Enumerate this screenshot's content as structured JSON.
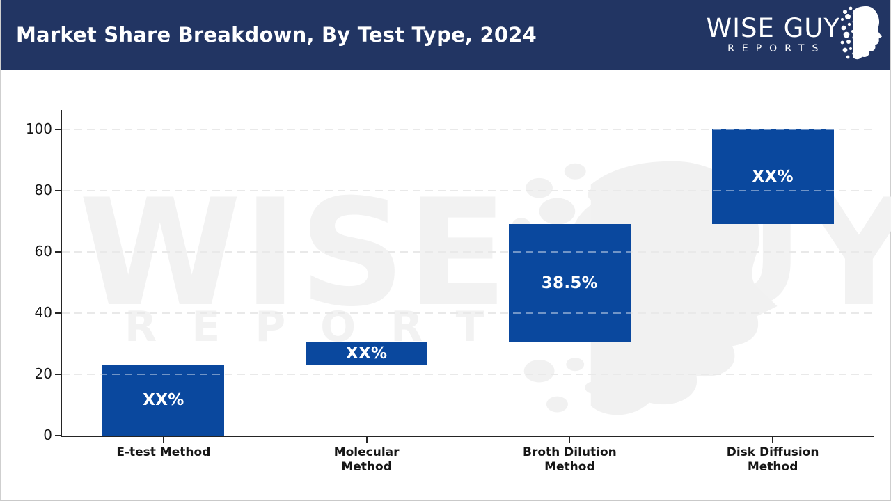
{
  "header": {
    "title": "Market Share Breakdown, By Test Type, 2024",
    "logo": {
      "line1": "WISE GUY",
      "line2": "REPORTS"
    }
  },
  "watermark": {
    "line1": "WISE GUY",
    "line2": "REPORTS"
  },
  "colors": {
    "header_bg": "#223563",
    "bar": "#0a489e",
    "grid": "#d9d9d9",
    "axis": "#242424",
    "label_text": "#161616",
    "bar_label_text": "#ffffff"
  },
  "chart_data": {
    "type": "bar",
    "variant": "waterfall-floating-bars",
    "title": "Market Share Breakdown, By Test Type, 2024",
    "categories": [
      "E-test Method",
      "Molecular Method",
      "Broth Dilution Method",
      "Disk Diffusion Method"
    ],
    "bars": [
      {
        "category": "E-test Method",
        "label": "XX%",
        "start": 0,
        "end": 23
      },
      {
        "category": "Molecular Method",
        "label": "XX%",
        "start": 23,
        "end": 30.5
      },
      {
        "category": "Broth Dilution Method",
        "label": "38.5%",
        "start": 30.5,
        "end": 69
      },
      {
        "category": "Disk Diffusion Method",
        "label": "XX%",
        "start": 69,
        "end": 100
      }
    ],
    "ylabel": "",
    "xlabel": "",
    "yticks": [
      0,
      20,
      40,
      60,
      80,
      100
    ],
    "ylim": [
      0,
      106
    ],
    "grid": "horizontal dashed",
    "legend": "none"
  }
}
